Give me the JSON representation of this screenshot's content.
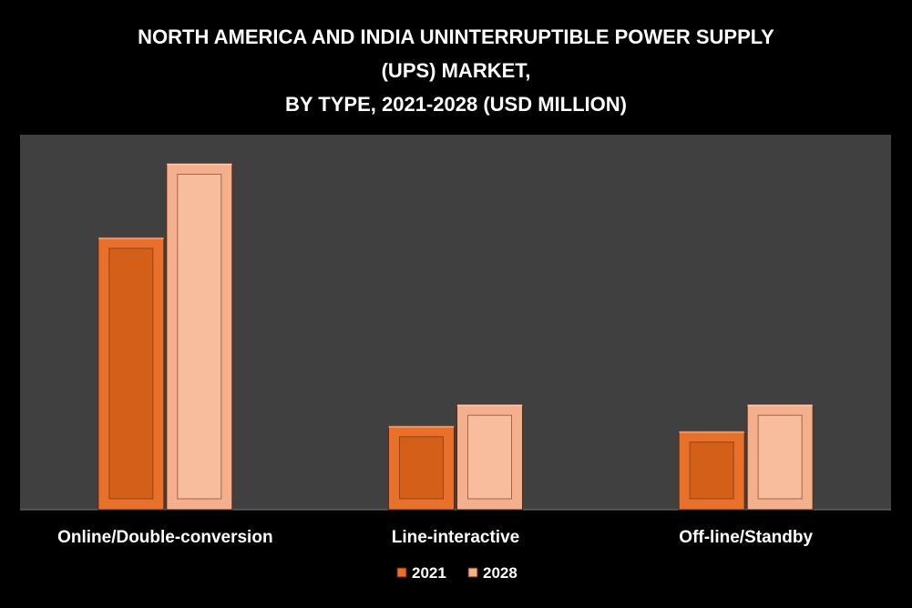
{
  "chart_data": {
    "type": "bar",
    "title_lines": [
      "NORTH AMERICA AND INDIA UNINTERRUPTIBLE POWER SUPPLY",
      "(UPS) MARKET,",
      "BY TYPE, 2021-2028 (USD MILLION)"
    ],
    "categories": [
      "Online/Double-conversion",
      "Line-interactive",
      "Off-line/Standby"
    ],
    "series": [
      {
        "name": "2021",
        "values": [
          305,
          94,
          88
        ],
        "color": "#e8702a",
        "inner_color": "#d45f18"
      },
      {
        "name": "2028",
        "values": [
          388,
          118,
          118
        ],
        "color": "#f4b08c",
        "inner_color": "#f7bd9c"
      }
    ],
    "ylim": [
      0,
      420
    ],
    "grid": false,
    "legend_position": "bottom",
    "plot_background": "#404040",
    "page_background": "#000000"
  }
}
